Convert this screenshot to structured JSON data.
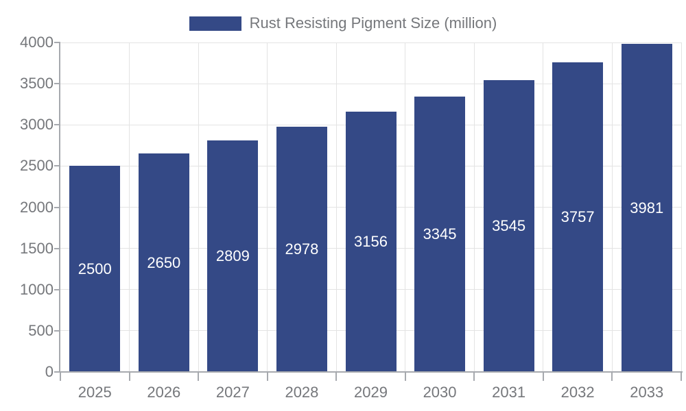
{
  "chart_data": {
    "type": "bar",
    "title": "Rust Resisting Pigment Size (million)",
    "legend": [
      "Rust Resisting Pigment Size (million)"
    ],
    "legend_position": "top-center",
    "categories": [
      "2025",
      "2026",
      "2027",
      "2028",
      "2029",
      "2030",
      "2031",
      "2032",
      "2033"
    ],
    "values": [
      2500,
      2650,
      2809,
      2978,
      3156,
      3345,
      3545,
      3757,
      3981
    ],
    "xlabel": "",
    "ylabel": "",
    "ylim": [
      0,
      4000
    ],
    "ytick_step": 500,
    "ytick_labels": [
      "0",
      "500",
      "1000",
      "1500",
      "2000",
      "2500",
      "3000",
      "3500",
      "4000"
    ],
    "grid": "horizontal and vertical light gridlines",
    "bar_label_position": "inside-center"
  },
  "style": {
    "bar_color": "#344986",
    "grid_color": "#E3E3E3",
    "axis_color": "#A6A9AE",
    "tick_label_color": "#75777B",
    "legend_text_color": "#75777B",
    "bar_label_color": "#FFFFFF",
    "background": "#FFFFFF"
  }
}
